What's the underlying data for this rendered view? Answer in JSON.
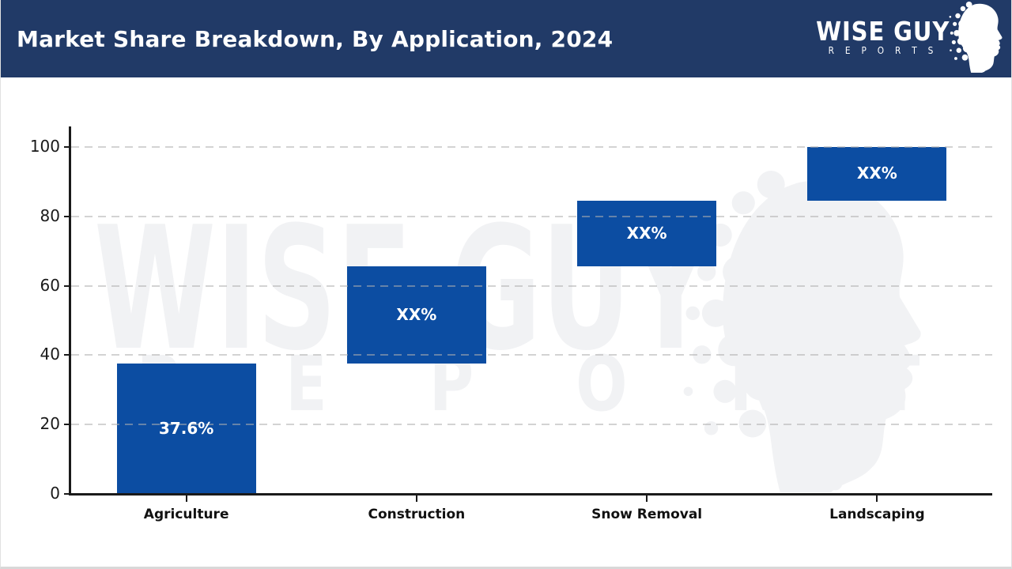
{
  "header": {
    "title": "Market Share Breakdown, By Application, 2024",
    "background_color": "#213A67",
    "logo": {
      "line1": "WISE GUY",
      "line2": "R E P O R T S"
    }
  },
  "watermark": {
    "line1": "WISE GUY",
    "line2": "R E P O R T S"
  },
  "chart_data": {
    "type": "bar",
    "subtype": "waterfall",
    "title": "Market Share Breakdown, By Application, 2024",
    "categories": [
      "Agriculture",
      "Construction",
      "Snow Removal",
      "Landscaping"
    ],
    "segments": [
      {
        "category": "Agriculture",
        "start": 0,
        "end": 37.6,
        "label": "37.6%"
      },
      {
        "category": "Construction",
        "start": 37.6,
        "end": 65.6,
        "label": "XX%"
      },
      {
        "category": "Snow Removal",
        "start": 65.6,
        "end": 84.6,
        "label": "XX%"
      },
      {
        "category": "Landscaping",
        "start": 84.6,
        "end": 100,
        "label": "XX%"
      }
    ],
    "ylim": [
      0,
      100
    ],
    "yticks": [
      0,
      20,
      40,
      60,
      80,
      100
    ],
    "xlabel": "",
    "ylabel": "",
    "grid": true,
    "grid_style": "dashed",
    "legend": "none",
    "bar_color": "#0C4DA2",
    "bar_label_color": "#FFFFFF",
    "axis_color": "#1A1A1A",
    "gridline_color": "#D0D0D0"
  }
}
